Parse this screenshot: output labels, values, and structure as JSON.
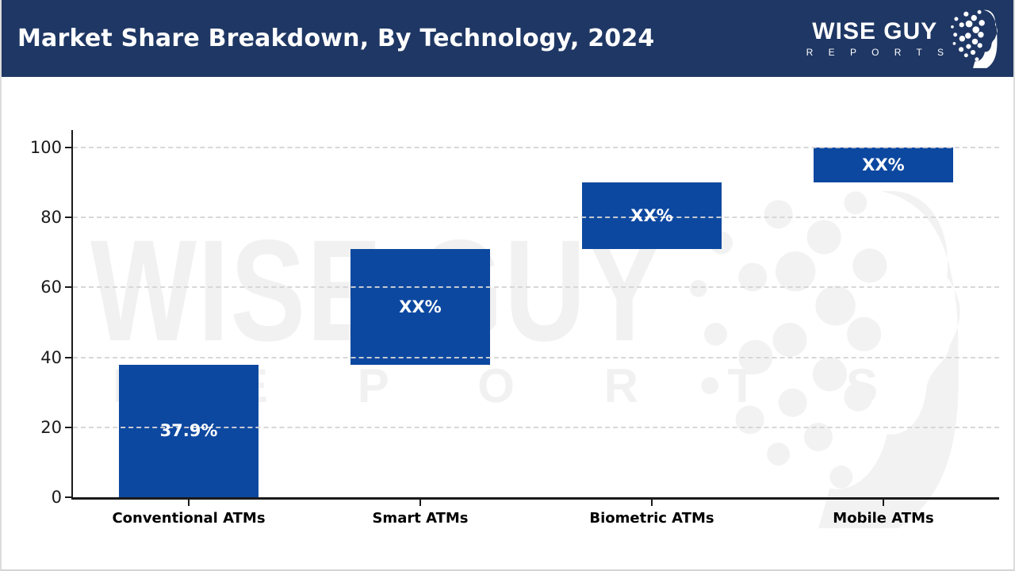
{
  "header": {
    "title": "Market Share Breakdown, By Technology, 2024",
    "logo": {
      "line1": "WISE GUY",
      "line2": "R E P O R T S"
    }
  },
  "watermark": {
    "line1": "WISE GUY",
    "line2": "R E P O R T S"
  },
  "chart_data": {
    "type": "bar",
    "subtype": "waterfall",
    "title": "Market Share Breakdown, By Technology, 2024",
    "categories": [
      "Conventional ATMs",
      "Smart ATMs",
      "Biometric ATMs",
      "Mobile ATMs"
    ],
    "segments": [
      {
        "category": "Conventional ATMs",
        "start": 0,
        "end": 37.9,
        "label": "37.9%"
      },
      {
        "category": "Smart ATMs",
        "start": 37.9,
        "end": 71,
        "label": "XX%"
      },
      {
        "category": "Biometric ATMs",
        "start": 71,
        "end": 90,
        "label": "XX%"
      },
      {
        "category": "Mobile ATMs",
        "start": 90,
        "end": 100,
        "label": "XX%"
      }
    ],
    "yticks": [
      0,
      20,
      40,
      60,
      80,
      100
    ],
    "ylim": [
      0,
      105
    ],
    "xlabel": "",
    "ylabel": "",
    "grid": "horizontal-dashed",
    "legend": "none",
    "bar_color": "#0d48a0",
    "bar_label_color": "#ffffff",
    "header_color": "#1f3764",
    "gridline_color": "#d5d5d5",
    "axis_color": "#1a1a1a"
  }
}
